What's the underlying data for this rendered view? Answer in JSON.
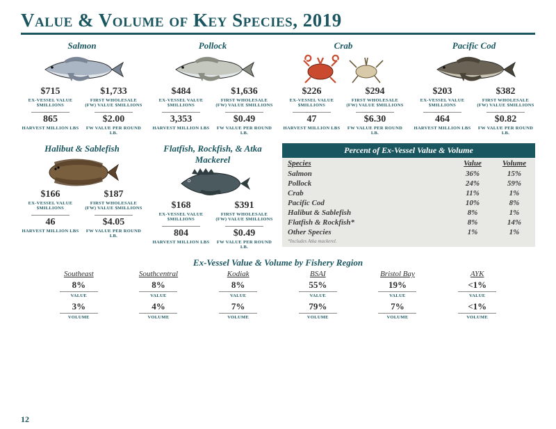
{
  "title": "Value & Volume of Key Species, 2019",
  "page_number": "12",
  "labels": {
    "ex_vessel": "EX-VESSEL VALUE $MILLIONS",
    "fw_value": "FIRST WHOLESALE (FW) VALUE $MILLIONS",
    "harvest": "HARVEST MILLION LBS",
    "fw_per_lb": "FW VALUE PER ROUND LB.",
    "value": "VALUE",
    "volume": "VOLUME"
  },
  "species": [
    {
      "name": "Salmon",
      "ex_vessel": "$715",
      "fw_value": "$1,733",
      "harvest": "865",
      "fw_per_lb": "$2.00",
      "svg_body": "#aab6c4",
      "svg_fin": "#7a8696",
      "shape": "salmon"
    },
    {
      "name": "Pollock",
      "ex_vessel": "$484",
      "fw_value": "$1,636",
      "harvest": "3,353",
      "fw_per_lb": "$0.49",
      "svg_body": "#c4c8bf",
      "svg_fin": "#8a8e82",
      "shape": "pollock"
    },
    {
      "name": "Crab",
      "ex_vessel": "$226",
      "fw_value": "$294",
      "harvest": "47",
      "fw_per_lb": "$6.30",
      "svg_body": "#c94a2e",
      "svg_body2": "#d8c9a8",
      "shape": "crab"
    },
    {
      "name": "Pacific Cod",
      "ex_vessel": "$203",
      "fw_value": "$382",
      "harvest": "464",
      "fw_per_lb": "$0.82",
      "svg_body": "#6b6456",
      "svg_fin": "#4a4438",
      "shape": "cod"
    },
    {
      "name": "Halibut & Sablefish",
      "ex_vessel": "$166",
      "fw_value": "$187",
      "harvest": "46",
      "fw_per_lb": "$4.05",
      "svg_body": "#7a5f3f",
      "svg_fin": "#5a432a",
      "shape": "halibut"
    },
    {
      "name": "Flatfish, Rockfish, & Atka Mackerel",
      "ex_vessel": "$168",
      "fw_value": "$391",
      "harvest": "804",
      "fw_per_lb": "$0.49",
      "svg_body": "#4a5a5e",
      "svg_fin": "#2f3c40",
      "shape": "rockfish"
    }
  ],
  "percent_table": {
    "title": "Percent of Ex-Vessel Value & Volume",
    "cols": [
      "Species",
      "Value",
      "Volume"
    ],
    "rows": [
      [
        "Salmon",
        "36%",
        "15%"
      ],
      [
        "Pollock",
        "24%",
        "59%"
      ],
      [
        "Crab",
        "11%",
        "1%"
      ],
      [
        "Pacific Cod",
        "10%",
        "8%"
      ],
      [
        "Halibut & Sablefish",
        "8%",
        "1%"
      ],
      [
        "Flatfish & Rockfish*",
        "8%",
        "14%"
      ],
      [
        "Other Species",
        "1%",
        "1%"
      ]
    ],
    "footnote": "*Includes Atka mackerel."
  },
  "regions_title": "Ex-Vessel Value & Volume by Fishery Region",
  "regions": [
    {
      "name": "Southeast",
      "value": "8%",
      "volume": "3%"
    },
    {
      "name": "Southcentral",
      "value": "8%",
      "volume": "4%"
    },
    {
      "name": "Kodiak",
      "value": "8%",
      "volume": "7%"
    },
    {
      "name": "BSAI",
      "value": "55%",
      "volume": "79%"
    },
    {
      "name": "Bristol Bay",
      "value": "19%",
      "volume": "7%"
    },
    {
      "name": "AYK",
      "value": "<1%",
      "volume": "<1%"
    }
  ],
  "colors": {
    "teal": "#1a5660",
    "table_bg": "#e8e8e4",
    "text": "#3a3a3a"
  }
}
